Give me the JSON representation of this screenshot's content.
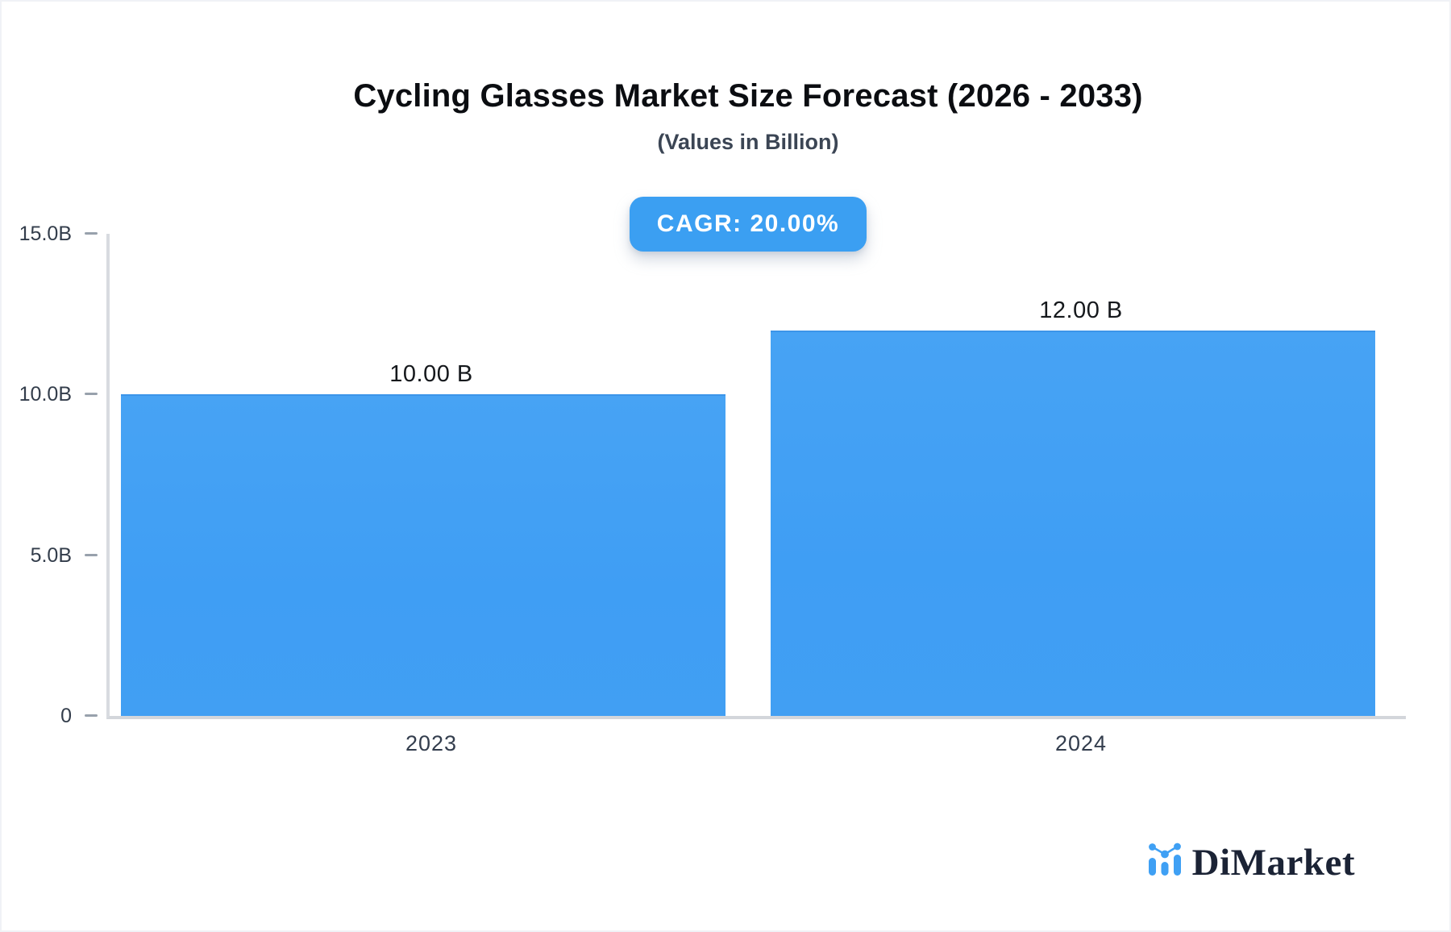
{
  "header": {
    "title": "Cycling Glasses Market Size Forecast (2026 - 2033)",
    "subtitle": "(Values in Billion)",
    "cagr_badge": "CAGR: 20.00%"
  },
  "chart_data": {
    "type": "bar",
    "title": "Cycling Glasses Market Size Forecast (2026 - 2033)",
    "subtitle": "(Values in Billion)",
    "categories": [
      "2023",
      "2024"
    ],
    "values": [
      10.0,
      12.0
    ],
    "value_labels": [
      "10.00 B",
      "12.00 B"
    ],
    "unit": "Billion",
    "cagr_label": "CAGR: 20.00%",
    "cagr_percent": 20.0,
    "xlabel": "",
    "ylabel": "",
    "ylim": [
      0,
      15
    ],
    "yticks": [
      {
        "value": 15,
        "label": "15.0B"
      },
      {
        "value": 10,
        "label": "10.0B"
      },
      {
        "value": 5,
        "label": "5.0B"
      },
      {
        "value": 0,
        "label": "0"
      }
    ],
    "grid": false,
    "legend": false,
    "bar_color": "#42a0f3"
  },
  "footer": {
    "brand_name": "DiMarket"
  },
  "colors": {
    "accent_blue": "#3b9ff2",
    "bar_blue": "#42a0f3",
    "axis_line": "#d8dbe0",
    "tick_mark": "#98a1ac",
    "tick_text": "#333d4b",
    "title_text": "#0b0d11",
    "subtitle_text": "#3b4554",
    "logo_navy": "#1b2335"
  }
}
